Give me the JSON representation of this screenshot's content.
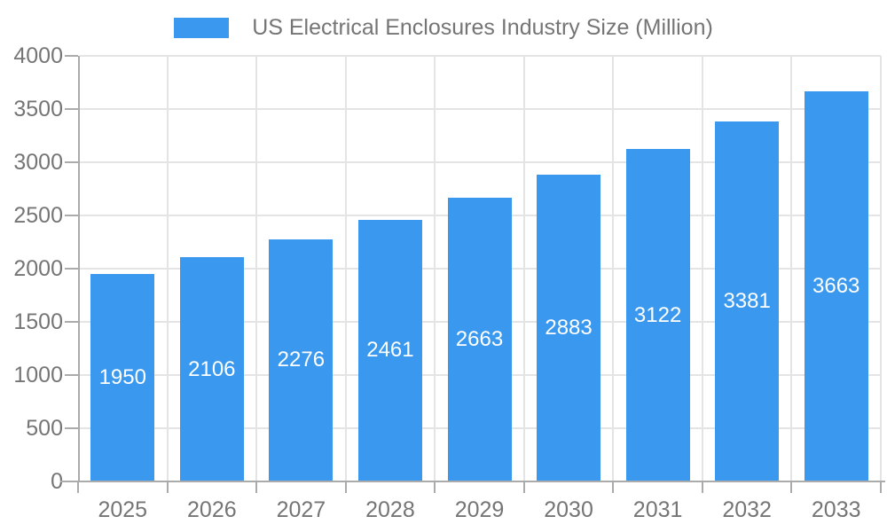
{
  "legend": {
    "label": "US Electrical Enclosures Industry Size (Million)"
  },
  "chart_data": {
    "type": "bar",
    "title": "US Electrical Enclosures Industry Size (Million)",
    "series_name": "US Electrical Enclosures Industry Size (Million)",
    "categories": [
      "2025",
      "2026",
      "2027",
      "2028",
      "2029",
      "2030",
      "2031",
      "2032",
      "2033"
    ],
    "values": [
      1950,
      2106,
      2276,
      2461,
      2663,
      2883,
      3122,
      3381,
      3663
    ],
    "bar_value_labels": [
      "1950",
      "2106",
      "2276",
      "2461",
      "2663",
      "2883",
      "3122",
      "3381",
      "3663"
    ],
    "xlabel": "",
    "ylabel": "",
    "ylim": [
      0,
      4000
    ],
    "ytick_step": 500,
    "yticks": [
      0,
      500,
      1000,
      1500,
      2000,
      2500,
      3000,
      3500,
      4000
    ],
    "grid": true,
    "legend_position": "top-center",
    "value_label_position": "inside-center",
    "colors": {
      "bar": "#3A99EE",
      "grid": "#E4E4E4",
      "axis": "#ABABAB",
      "text": "#757575",
      "bar_label_text": "#FFFFFF",
      "background": "#FFFFFF"
    }
  }
}
